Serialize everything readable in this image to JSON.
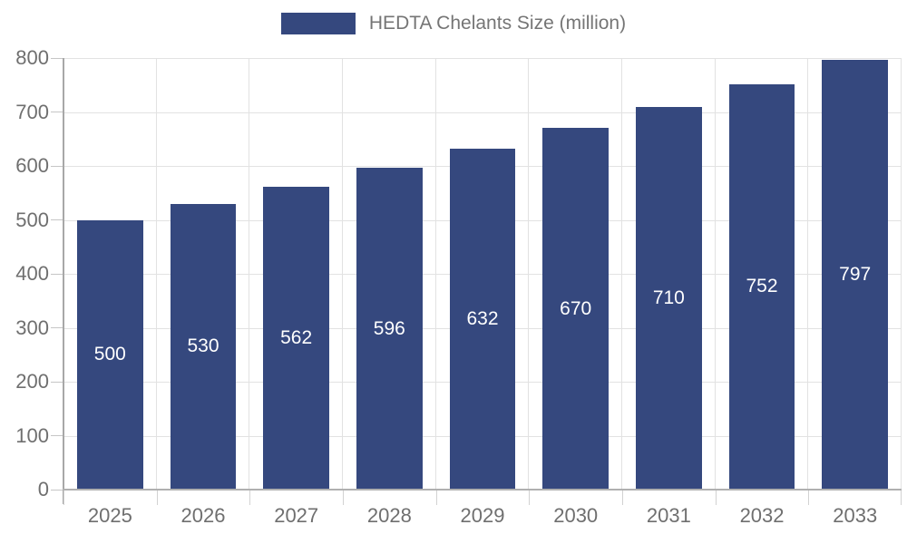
{
  "chart_data": {
    "type": "bar",
    "title": "HEDTA Chelants Size (million)",
    "categories": [
      "2025",
      "2026",
      "2027",
      "2028",
      "2029",
      "2030",
      "2031",
      "2032",
      "2033"
    ],
    "values": [
      500,
      530,
      562,
      596,
      632,
      670,
      710,
      752,
      797
    ],
    "xlabel": "",
    "ylabel": "",
    "ylim": [
      0,
      800
    ],
    "yticks": [
      0,
      100,
      200,
      300,
      400,
      500,
      600,
      700,
      800
    ],
    "grid": true,
    "legend_position": "top-center",
    "colors": {
      "bar": "#35487e",
      "value_label": "#ffffff",
      "axis_text": "#6f6f6f",
      "legend_text": "#757575",
      "gridline": "#e2e2e2",
      "axis_line": "#a8a8a8"
    }
  }
}
